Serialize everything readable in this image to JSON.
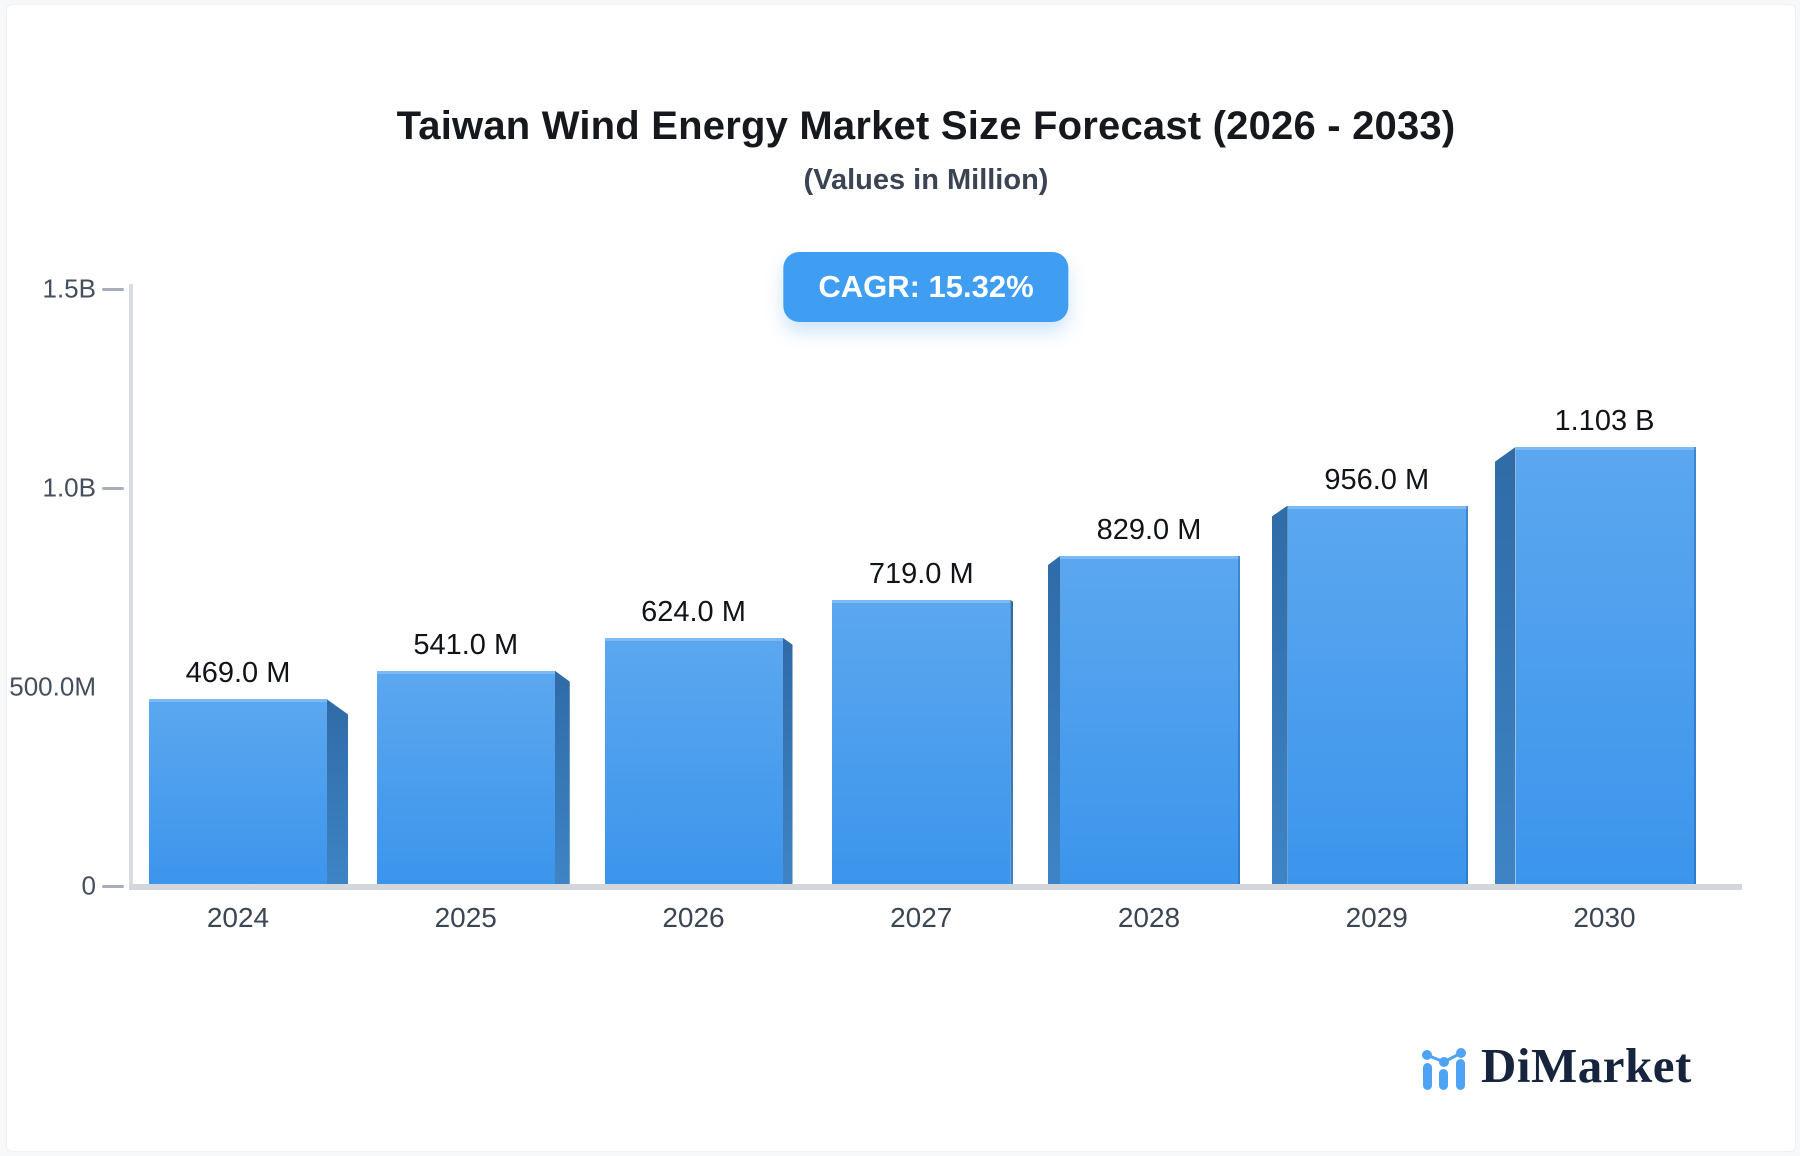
{
  "header": {
    "title": "Taiwan Wind Energy Market Size Forecast (2026 - 2033)",
    "subtitle": "(Values in Million)",
    "badge": {
      "label": "CAGR: 15.32%",
      "background": "#3f9df2",
      "text_color": "#ffffff"
    }
  },
  "chart_data": {
    "type": "bar",
    "title": "Taiwan Wind Energy Market Size Forecast (2026 - 2033)",
    "subtitle": "(Values in Million)",
    "categories": [
      "2024",
      "2025",
      "2026",
      "2027",
      "2028",
      "2029",
      "2030"
    ],
    "values_millions": [
      469,
      541,
      624,
      719,
      829,
      956,
      1103
    ],
    "bar_labels": [
      "469.0 M",
      "541.0 M",
      "624.0 M",
      "719.0 M",
      "829.0 M",
      "956.0 M",
      "1.103 B"
    ],
    "y_axis": {
      "min_millions": 0,
      "max_millions": 1500,
      "ticks": [
        {
          "value_millions": 1500,
          "label": "1.5B",
          "dash": true
        },
        {
          "value_millions": 1000,
          "label": "1.0B",
          "dash": true
        },
        {
          "value_millions": 500,
          "label": "500.0M",
          "dash": false
        },
        {
          "value_millions": 0,
          "label": "0",
          "dash": true
        }
      ]
    },
    "grid": "off",
    "legend": "none",
    "colors": {
      "bar_face_cap": "#7dbaf3",
      "bar_face_top": "#5ba7ef",
      "bar_face_bottom": "#3c95ec",
      "bar_side_top": "#2f6ba7",
      "bar_side_bottom": "#3e84c5"
    }
  },
  "footer": {
    "brand": "DiMarket",
    "brand_color": "#16243e",
    "icon_color": "#4fa3f5"
  }
}
